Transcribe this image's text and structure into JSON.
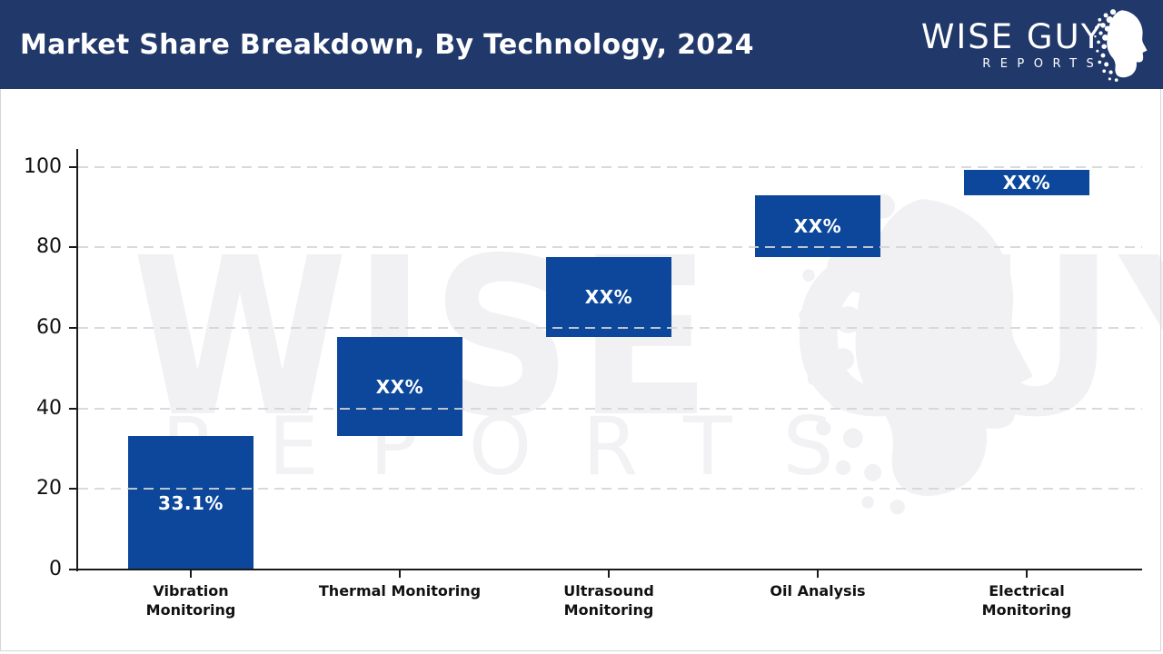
{
  "header": {
    "title": "Market Share Breakdown, By Technology, 2024",
    "logo": {
      "name": "WISE GUY",
      "sub": "REPORTS"
    }
  },
  "watermark": {
    "line1": "WISE GUY",
    "line2": "REPORTS"
  },
  "colors": {
    "header_bg": "#21386a",
    "bar": "#0c479b",
    "axis": "#1a1a1a",
    "gridline": "#d5d5d8",
    "bar_label_text": "#ffffff",
    "tick_text": "#111111",
    "watermark": "#f1f1f4"
  },
  "chart_data": {
    "type": "bar",
    "subtype": "waterfall",
    "title": "Market Share Breakdown, By Technology, 2024",
    "categories": [
      "Vibration\nMonitoring",
      "Thermal Monitoring",
      "Ultrasound\nMonitoring",
      "Oil Analysis",
      "Electrical\nMonitoring"
    ],
    "bars": [
      {
        "category": "Vibration Monitoring",
        "start": 0,
        "end": 33.1,
        "label": "33.1%"
      },
      {
        "category": "Thermal Monitoring",
        "start": 33.1,
        "end": 57.7,
        "label": "XX%"
      },
      {
        "category": "Ultrasound Monitoring",
        "start": 57.7,
        "end": 77.7,
        "label": "XX%"
      },
      {
        "category": "Oil Analysis",
        "start": 77.7,
        "end": 92.9,
        "label": "XX%"
      },
      {
        "category": "Electrical Monitoring",
        "start": 92.9,
        "end": 99.3,
        "label": "XX%"
      }
    ],
    "bar_color": "#0c479b",
    "yticks": [
      0,
      20,
      40,
      60,
      80,
      100
    ],
    "ylim": [
      0,
      104
    ],
    "xlabel": "",
    "ylabel": "",
    "grid": "dashed-horizontal",
    "legend": "none"
  }
}
